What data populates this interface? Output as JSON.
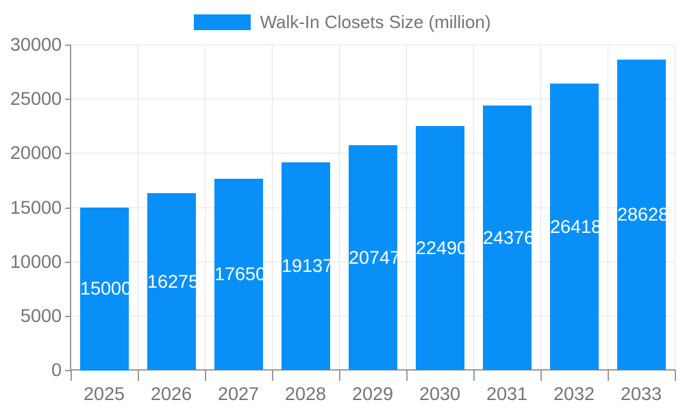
{
  "chart_data": {
    "type": "bar",
    "title": "Walk-In Closets Size (million)",
    "categories": [
      "2025",
      "2026",
      "2027",
      "2028",
      "2029",
      "2030",
      "2031",
      "2032",
      "2033"
    ],
    "values": [
      15000,
      16275,
      17650,
      19137,
      20747,
      22490,
      24376,
      26418,
      28628
    ],
    "xlabel": "",
    "ylabel": "",
    "ylim": [
      0,
      30000
    ],
    "yticks": [
      0,
      5000,
      10000,
      15000,
      20000,
      25000,
      30000
    ],
    "grid": "on",
    "legend": {
      "label": "Walk-In Closets Size (million)",
      "position": "top-center"
    },
    "value_labels": {
      "position": "inside-center"
    }
  },
  "colors": {
    "bar": "#0990f8",
    "grid": "#e3e3e3",
    "axis": "#9a9a9a",
    "tick_label": "#757575",
    "value_label": "#ffffff",
    "legend_text": "#757575",
    "background": "#ffffff"
  }
}
